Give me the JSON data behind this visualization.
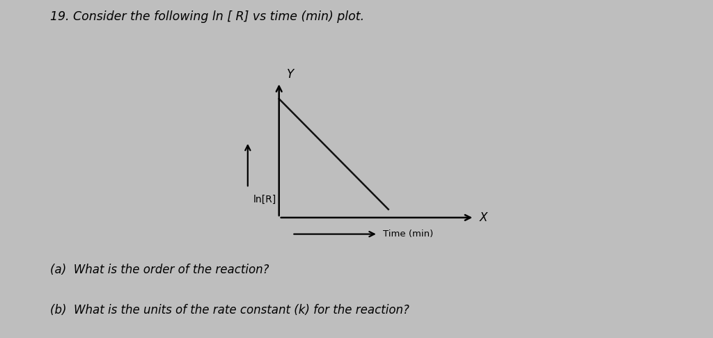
{
  "title": "19. Consider the following ln [ R] vs time (min) plot.",
  "title_fontsize": 12.5,
  "background_color": "#bebebe",
  "ylabel_label": "ln[R]",
  "xlabel_label": "Time (min)",
  "axis_label_Y": "Y",
  "axis_label_X": "X",
  "line_color": "#111111",
  "line_width": 1.8,
  "question_a": "(a)  What is the order of the reaction?",
  "question_b": "(b)  What is the units of the rate constant (k) for the reaction?",
  "question_fontsize": 12
}
